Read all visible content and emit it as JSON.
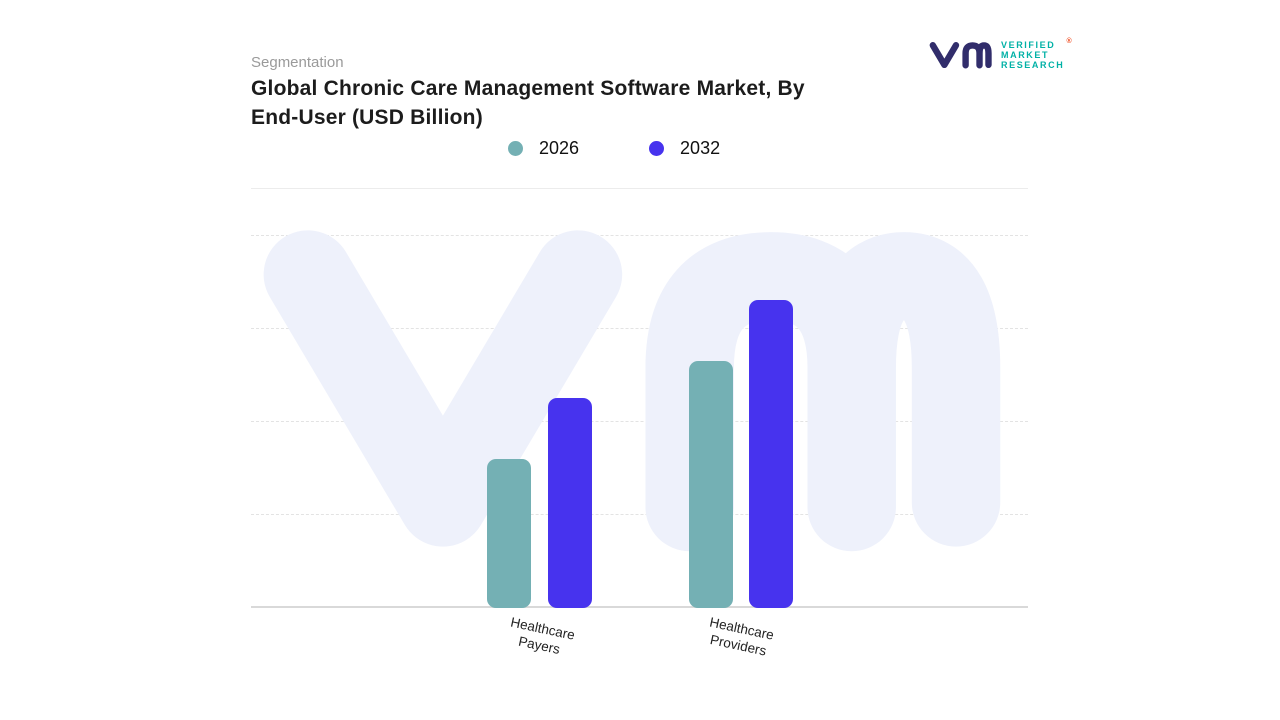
{
  "header": {
    "eyebrow": "Segmentation",
    "title_lines": [
      "Global Chronic Care Management Software Market, By",
      "End-User (USD Billion)"
    ]
  },
  "logo": {
    "brand_lines": [
      "VERIFIED",
      "MARKET",
      "RESEARCH"
    ],
    "registered_mark": "®",
    "glyph_color": "#312d6b",
    "text_color": "#00b1a6",
    "registered_color": "#f04e23"
  },
  "chart_data": {
    "type": "bar",
    "title": "Global Chronic Care Management Software Market, By End-User (USD Billion)",
    "categories": [
      "Healthcare Payers",
      "Healthcare Providers"
    ],
    "series": [
      {
        "name": "2026",
        "color": "#74b0b4",
        "values": [
          1.6,
          2.65
        ]
      },
      {
        "name": "2032",
        "color": "#4733ee",
        "values": [
          2.25,
          3.3
        ]
      }
    ],
    "xlabel": "",
    "ylabel": "",
    "ylim": [
      0,
      4
    ],
    "grid": true,
    "gridline_style": "dashed",
    "value_axis_labels_visible": false,
    "legend_position": "top",
    "watermark": {
      "text": "vm",
      "color": "#eef1fb"
    }
  }
}
